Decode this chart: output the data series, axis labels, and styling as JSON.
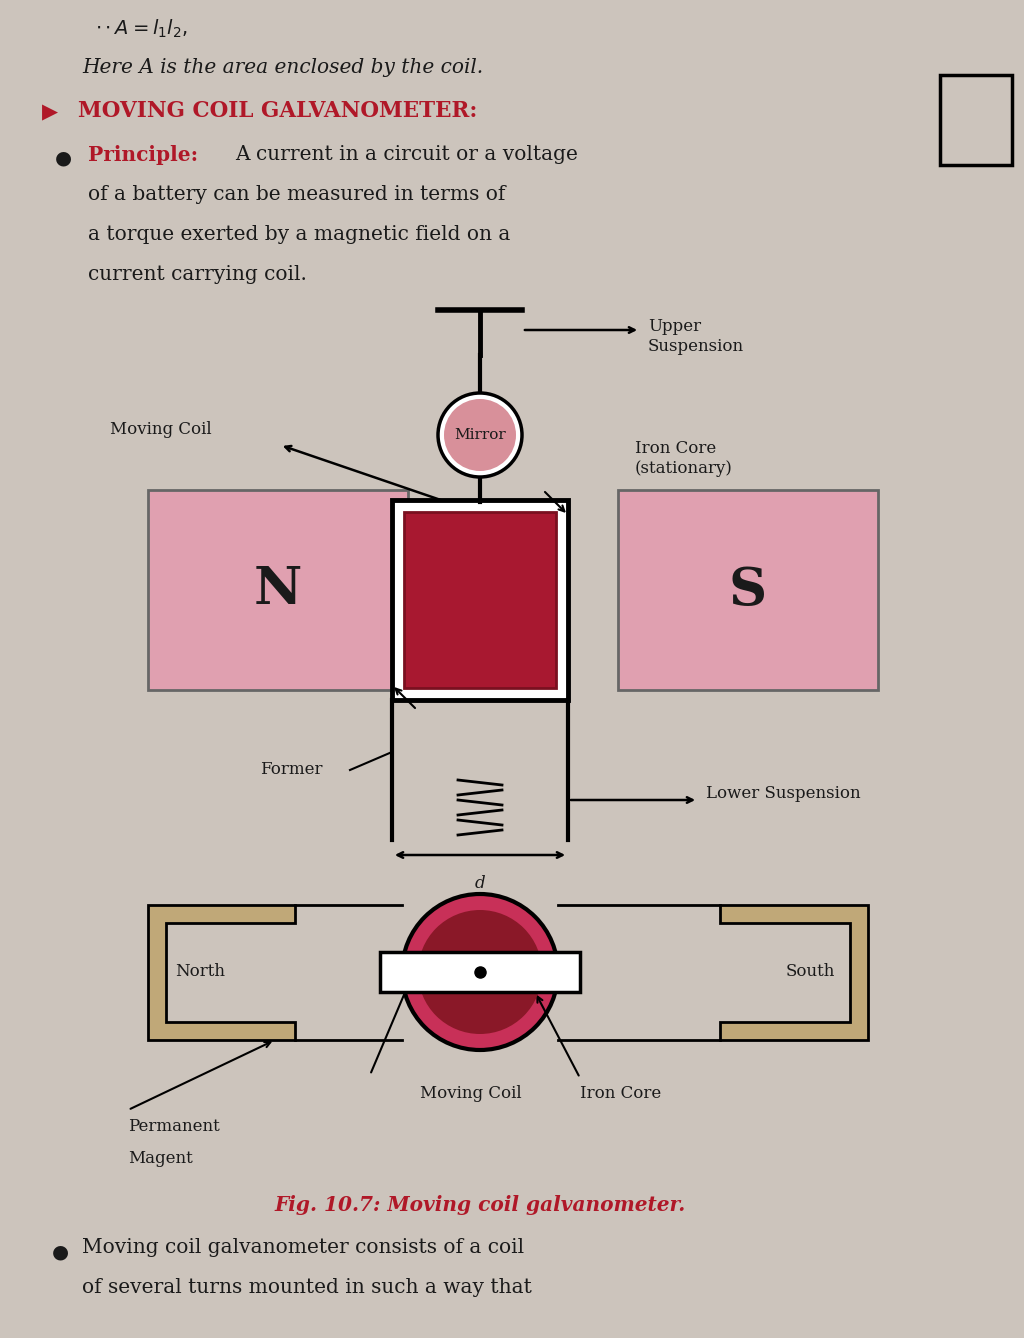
{
  "bg_color": "#ccc4bc",
  "text_color": "#1a1a1a",
  "red_color": "#b01828",
  "pink_magnet": "#e0a0b0",
  "line1": "Here A is the area enclosed by the coil.",
  "header": "MOVING COIL GALVANOMETER:",
  "bullet1_label": "Principle:",
  "bullet1_text_part2": "A current in a circuit or a voltage",
  "bullet1_line2": "of a battery can be measured in terms of",
  "bullet1_line3": "a torque exerted by a magnetic field on a",
  "bullet1_line4": "current carrying coil.",
  "fig_caption": "Fig. 10.7: Moving coil galvanometer.",
  "bullet2_line1": "Moving coil galvanometer consists of a coil",
  "bullet2_line2": "of several turns mounted in such a way that",
  "label_upper_suspension": "Upper\nSuspension",
  "label_mirror": "Mirror",
  "label_moving_coil": "Moving Coil",
  "label_iron_core": "Iron Core\n(stationary)",
  "label_N": "N",
  "label_S": "S",
  "label_former": "Former",
  "label_lower_suspension": "Lower Suspension",
  "label_d": "d",
  "label_north": "North",
  "label_south": "South",
  "label_moving_coil2": "Moving Coil",
  "label_iron_core2": "Iron Core",
  "label_permanent_line1": "Permanent",
  "label_permanent_line2": "Magent"
}
